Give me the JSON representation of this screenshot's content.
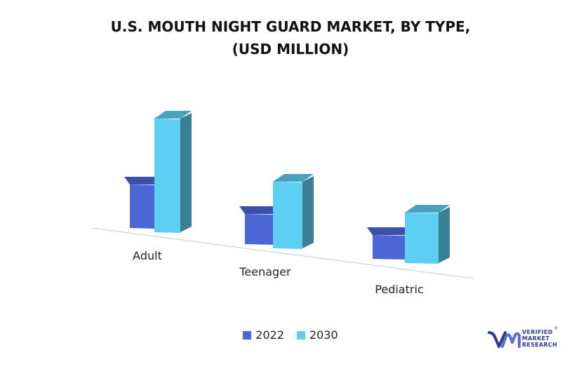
{
  "title_line1": "U.S. MOUTH NIGHT GUARD MARKET, BY TYPE,",
  "title_line2": "(USD MILLION)",
  "chart_data": {
    "type": "bar",
    "categories": [
      "Adult",
      "Teenager",
      "Pediatric"
    ],
    "series": [
      {
        "name": "2022",
        "values": [
          62,
          43,
          34
        ],
        "color": "#4b67d6"
      },
      {
        "name": "2030",
        "values": [
          162,
          95,
          72
        ],
        "color": "#5ccff3"
      }
    ],
    "xlabel": "",
    "ylabel": "",
    "ylim": [
      0,
      170
    ],
    "grid": false,
    "legend": "bottom"
  },
  "legend": {
    "item1": "2022",
    "item2": "2030"
  },
  "logo": {
    "line1": "VERIFIED",
    "line2": "MARKET",
    "line3": "RESEARCH",
    "mark": "®"
  },
  "colors": {
    "series2022": "#4b67d6",
    "series2030": "#5ccff3",
    "logo": "#2f3a8f"
  }
}
